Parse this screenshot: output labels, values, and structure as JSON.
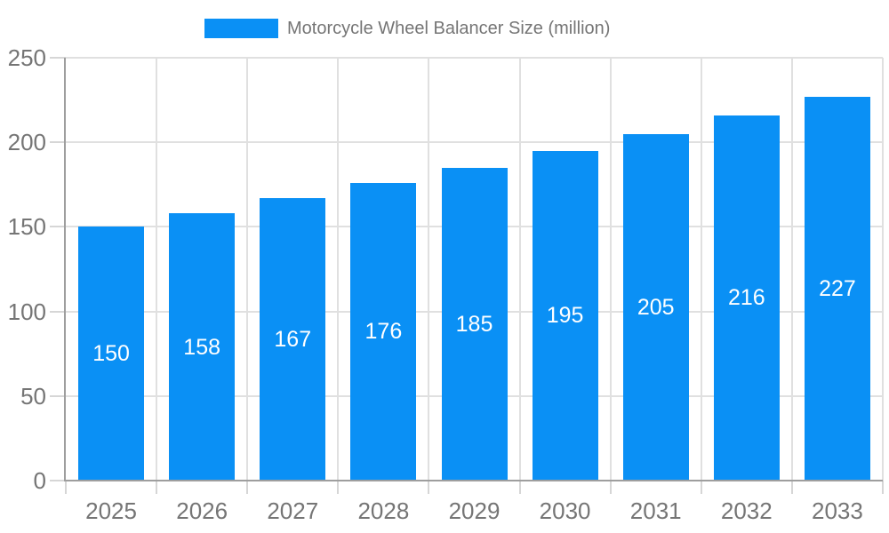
{
  "legend": {
    "items": [
      {
        "label": "Motorcycle Wheel Balancer Size (million)",
        "color": "#0a90f5"
      }
    ]
  },
  "chart_data": {
    "type": "bar",
    "title": "Motorcycle Wheel Balancer Size (million)",
    "categories": [
      "2025",
      "2026",
      "2027",
      "2028",
      "2029",
      "2030",
      "2031",
      "2032",
      "2033"
    ],
    "series": [
      {
        "name": "Motorcycle Wheel Balancer Size (million)",
        "values": [
          150,
          158,
          167,
          176,
          185,
          195,
          205,
          216,
          227
        ]
      }
    ],
    "xlabel": "",
    "ylabel": "",
    "ylim": [
      0,
      250
    ],
    "yticks": [
      0,
      50,
      100,
      150,
      200,
      250
    ],
    "grid": true,
    "legend_position": "top",
    "bar_label_position": "inside-middle",
    "style": {
      "bar_color": "#0a90f5",
      "background": "#ffffff",
      "grid_color": "#e0e0e0",
      "axis_color": "#9e9e9e",
      "tick_color": "#d6d6d6",
      "axis_label_color": "#757575",
      "bar_label_color": "#ffffff",
      "legend_text_color": "#757575"
    }
  }
}
